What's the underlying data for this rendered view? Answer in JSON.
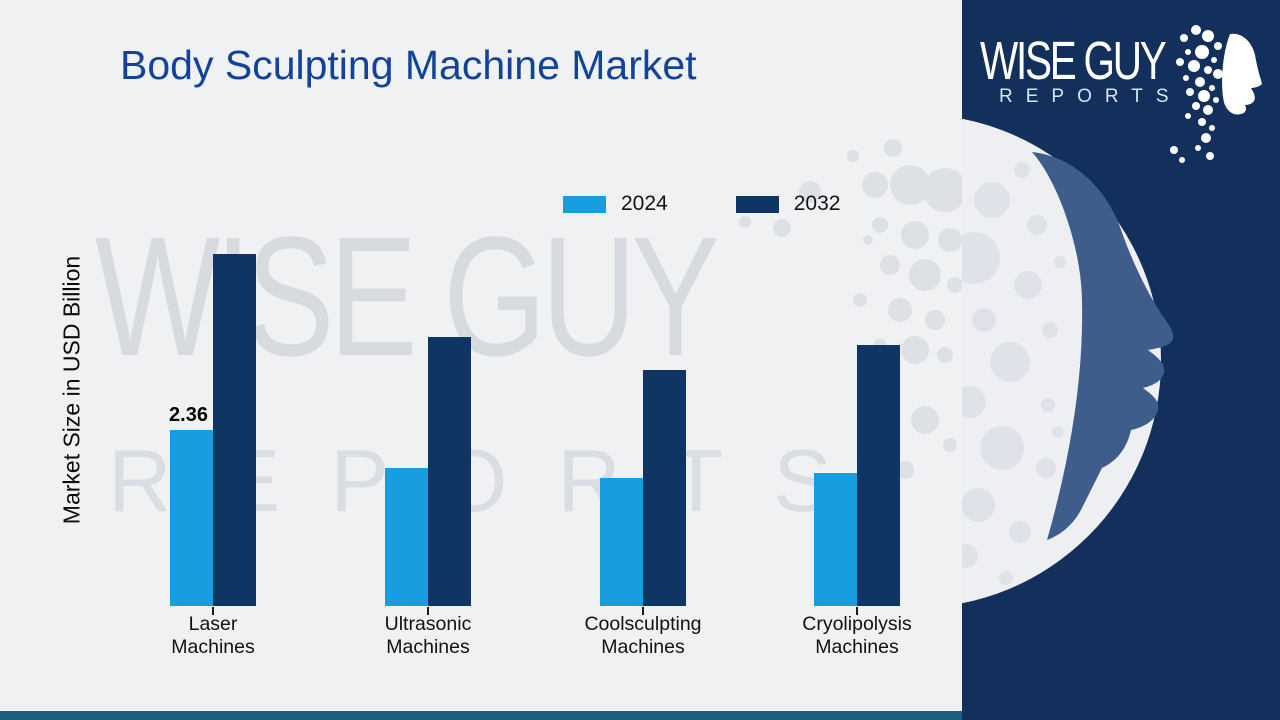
{
  "title": "Body Sculpting Machine Market",
  "brand": {
    "name_top": "WISE GUY",
    "name_bottom": "REPORTS"
  },
  "watermark": {
    "line1": "WISE GUY",
    "line2": "REPORTS"
  },
  "chart_data": {
    "type": "bar",
    "title": "Body Sculpting Machine Market",
    "ylabel": "Market Size in USD Billion",
    "xlabel": "",
    "categories": [
      "Laser Machines",
      "Ultrasonic Machines",
      "Coolsculpting Machines",
      "Cryolipolysis Machines"
    ],
    "series": [
      {
        "name": "2024",
        "color": "#189de0",
        "values": [
          2.36,
          1.85,
          1.72,
          1.78
        ]
      },
      {
        "name": "2032",
        "color": "#0f3565",
        "values": [
          4.72,
          3.6,
          3.17,
          3.5
        ]
      }
    ],
    "data_label": {
      "text": "2.36",
      "series_index": 0,
      "category_index": 0
    },
    "ylim": [
      0,
      5
    ],
    "grid": false,
    "axis_lines": false,
    "legend_position": "top-right"
  },
  "colors": {
    "title_blue": "#11439b",
    "bar_2024": "#189de0",
    "bar_2032": "#0f3565",
    "brand_column_navy": "#13305c",
    "face_silhouette": "#3e5d8b",
    "circle_gray": "#edeff2",
    "dot_gray": "#dfe3e9",
    "watermark_gray": "#d7dade",
    "teal_strip": "#1d5f7e",
    "background": "#f0f1f3"
  }
}
